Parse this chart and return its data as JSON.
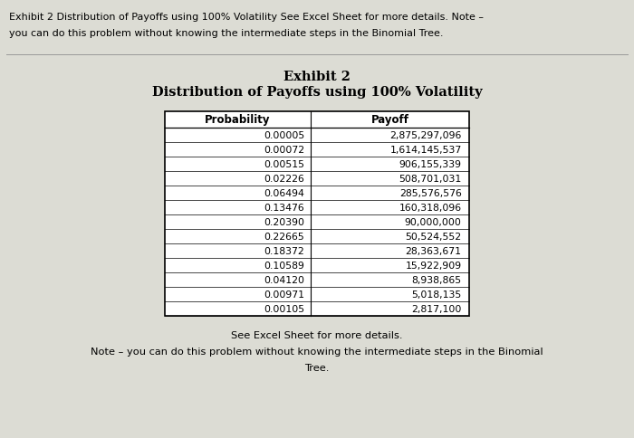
{
  "header_text_line1": "Exhibit 2 Distribution of Payoffs using 100% Volatility See Excel Sheet for more details. Note –",
  "header_text_line2": "you can do this problem without knowing the intermediate steps in the Binomial Tree.",
  "title_line1": "Exhibit 2",
  "title_line2": "Distribution of Payoffs using 100% Volatility",
  "col_headers": [
    "Probability",
    "Payoff"
  ],
  "probabilities": [
    "0.00005",
    "0.00072",
    "0.00515",
    "0.02226",
    "0.06494",
    "0.13476",
    "0.20390",
    "0.22665",
    "0.18372",
    "0.10589",
    "0.04120",
    "0.00971",
    "0.00105"
  ],
  "payoffs": [
    "2,875,297,096",
    "1,614,145,537",
    "906,155,339",
    "508,701,031",
    "285,576,576",
    "160,318,096",
    "90,000,000",
    "50,524,552",
    "28,363,671",
    "15,922,909",
    "8,938,865",
    "5,018,135",
    "2,817,100"
  ],
  "footer_line1": "See Excel Sheet for more details.",
  "footer_line2": "Note – you can do this problem without knowing the intermediate steps in the Binomial",
  "footer_line3": "Tree.",
  "bg_color": "#dcdcd4",
  "text_color": "#000000",
  "header_separator_color": "#999999",
  "table_border_color": "#000000",
  "table_bg": "#ffffff",
  "fig_width": 7.0,
  "fig_height": 4.85,
  "dpi": 100
}
